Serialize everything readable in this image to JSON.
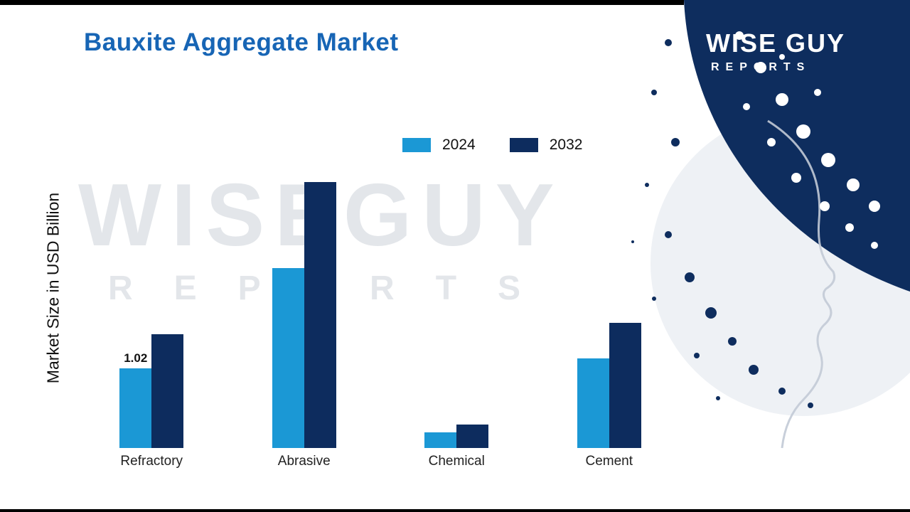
{
  "page": {
    "title": "Bauxite Aggregate Market",
    "y_axis_label": "Market Size in USD Billion"
  },
  "logo": {
    "line1": "WISE GUY",
    "line2": "REPORTS"
  },
  "watermark": {
    "line1": "WISEGUY",
    "line2": "REPORTS"
  },
  "colors": {
    "series_2024": "#1b98d5",
    "series_2032": "#0d2c5e",
    "title_blue": "#1765b5",
    "logo_navy": "#0e2d5e"
  },
  "chart_data": {
    "type": "bar",
    "title": "Bauxite Aggregate Market",
    "xlabel": "",
    "ylabel": "Market Size in USD Billion",
    "unit": "USD Billion",
    "categories": [
      "Refractory",
      "Abrasive",
      "Chemical",
      "Cement"
    ],
    "series": [
      {
        "name": "2024",
        "color": "#1b98d5",
        "values": [
          1.02,
          2.3,
          0.2,
          1.15
        ]
      },
      {
        "name": "2032",
        "color": "#0d2c5e",
        "values": [
          1.45,
          3.4,
          0.3,
          1.6
        ]
      }
    ],
    "annotations": [
      {
        "category": "Refractory",
        "series": "2024",
        "text": "1.02"
      }
    ],
    "ylim": [
      0,
      3.6
    ],
    "grid": false,
    "legend_position": "top",
    "axis_visible": false
  }
}
